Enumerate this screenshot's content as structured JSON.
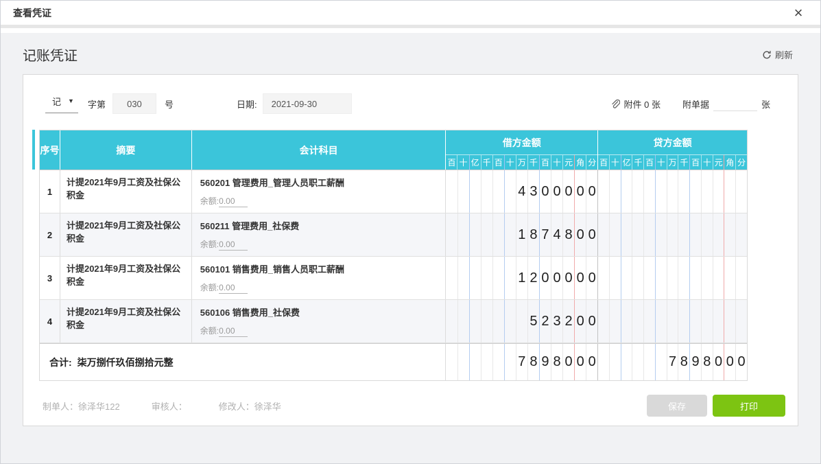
{
  "window": {
    "title": "查看凭证",
    "close_glyph": "×"
  },
  "page": {
    "title": "记账凭证",
    "refresh_label": "刷新"
  },
  "form": {
    "word": "记",
    "word_label": "字第",
    "number_value": "030",
    "number_suffix": "号",
    "date_label": "日期:",
    "date_value": "2021-09-30",
    "attachment_label": "附件 0 张",
    "receipt_label": "附单据",
    "receipt_value": "",
    "sheet_unit": "张"
  },
  "table": {
    "headers": {
      "index": "序号",
      "summary": "摘要",
      "subject": "会计科目",
      "debit": "借方金额",
      "credit": "贷方金额"
    },
    "digit_positions": [
      "百",
      "十",
      "亿",
      "千",
      "百",
      "十",
      "万",
      "千",
      "百",
      "十",
      "元",
      "角",
      "分"
    ],
    "balance_label": "余额:",
    "rows": [
      {
        "index": "1",
        "summary": "计提2021年9月工资及社保公积金",
        "subject": "560201 管理费用_管理人员职工薪酬",
        "balance": "0.00",
        "debit": "4300000",
        "credit": ""
      },
      {
        "index": "2",
        "summary": "计提2021年9月工资及社保公积金",
        "subject": "560211 管理费用_社保费",
        "balance": "0.00",
        "debit": "1874800",
        "credit": ""
      },
      {
        "index": "3",
        "summary": "计提2021年9月工资及社保公积金",
        "subject": "560101 销售费用_销售人员职工薪酬",
        "balance": "0.00",
        "debit": "1200000",
        "credit": ""
      },
      {
        "index": "4",
        "summary": "计提2021年9月工资及社保公积金",
        "subject": "560106 销售费用_社保费",
        "balance": "0.00",
        "debit": "523200",
        "credit": ""
      }
    ],
    "total": {
      "label": "合计:",
      "amount_text": "柒万捌仟玖佰捌拾元整",
      "debit": "7898000",
      "credit": "7898000"
    }
  },
  "footer": {
    "creator_label": "制单人：",
    "creator": "徐泽华122",
    "auditor_label": "审核人：",
    "auditor": "",
    "modifier_label": "修改人：",
    "modifier": "徐泽华",
    "save_label": "保存",
    "print_label": "打印"
  },
  "colors": {
    "accent_teal": "#3bc5da",
    "print_green": "#7dc412",
    "group_line_blue": "#b4cdf0",
    "decimal_line_red": "#f0aaaa"
  }
}
